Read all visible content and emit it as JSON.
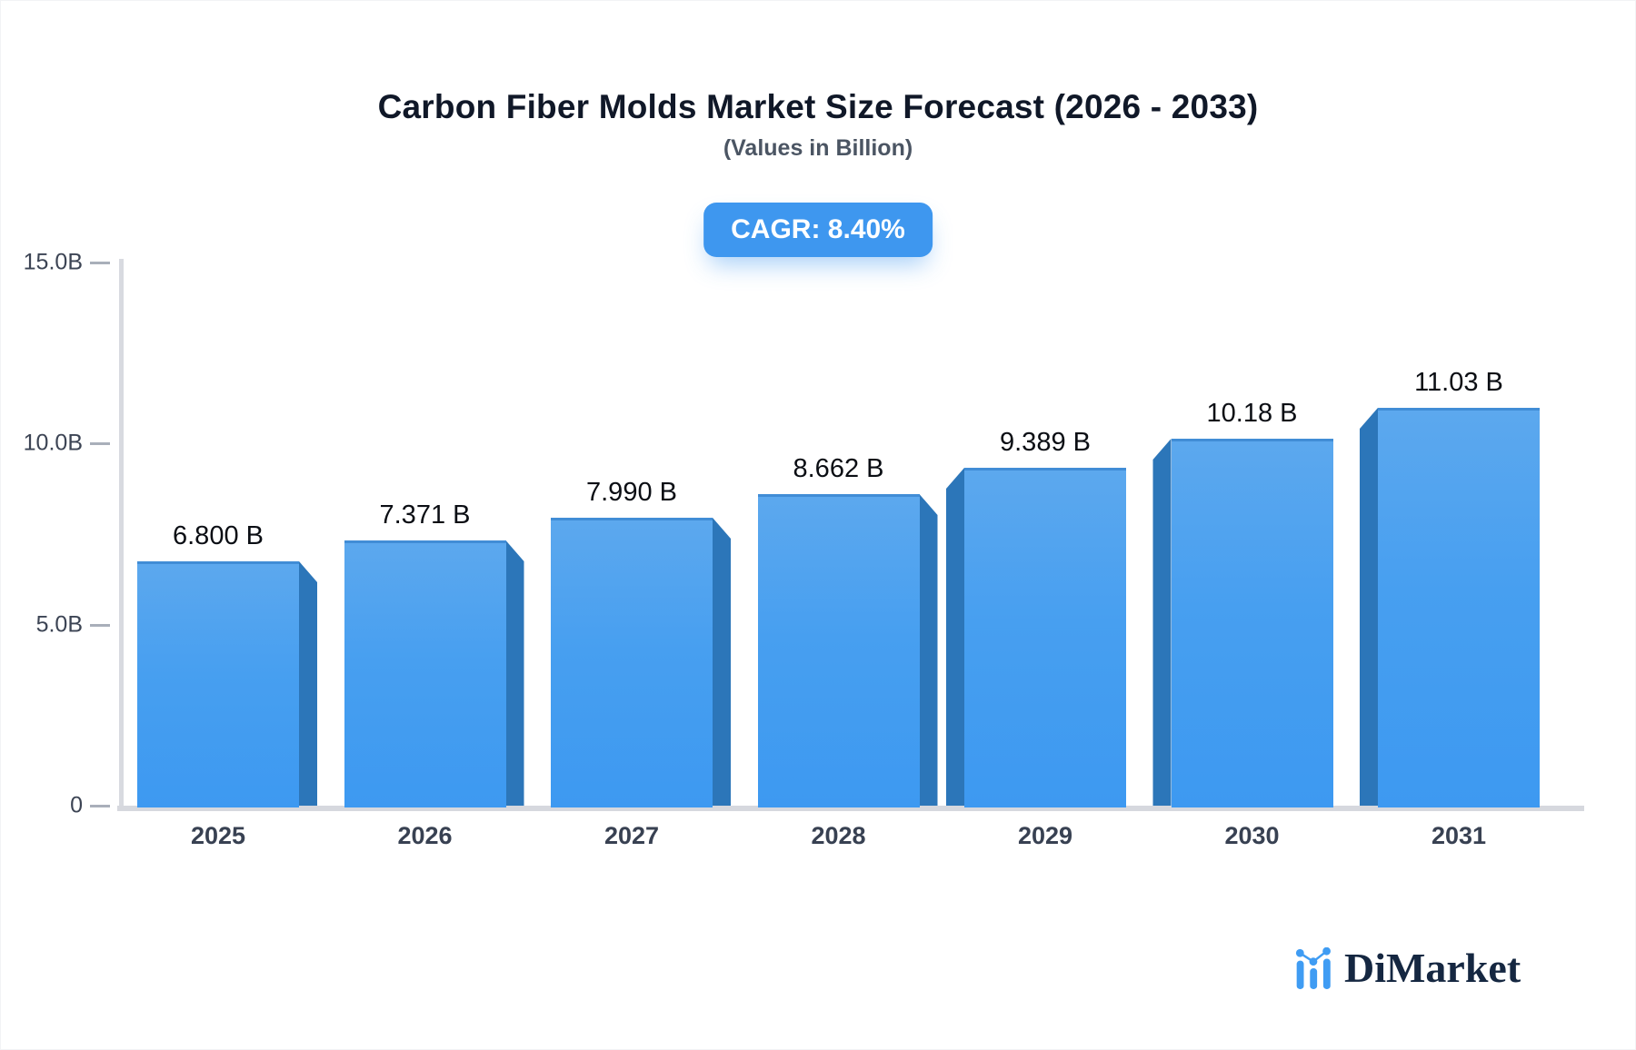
{
  "title": "Carbon Fiber Molds Market Size Forecast (2026 - 2033)",
  "subtitle": "(Values in Billion)",
  "badge": {
    "label": "CAGR: 8.40%"
  },
  "chart_data": {
    "type": "bar",
    "categories": [
      "2025",
      "2026",
      "2027",
      "2028",
      "2029",
      "2030",
      "2031"
    ],
    "values": [
      6.8,
      7.371,
      7.99,
      8.662,
      9.389,
      10.18,
      11.03
    ],
    "value_labels": [
      "6.800 B",
      "7.371 B",
      "7.990 B",
      "8.662 B",
      "9.389 B",
      "10.18 B",
      "11.03 B"
    ],
    "title": "Carbon Fiber Molds Market Size Forecast (2026 - 2033)",
    "subtitle": "(Values in Billion)",
    "ylim": [
      0,
      15
    ],
    "yticks": [
      {
        "label": "15.0B",
        "value": 15
      },
      {
        "label": "10.0B",
        "value": 10
      },
      {
        "label": "5.0B",
        "value": 5
      },
      {
        "label": "0",
        "value": 0
      }
    ],
    "grid": "off",
    "legend": "none",
    "colors": {
      "bar_top": "#5ca8ee",
      "bar_bottom": "#3d99f1",
      "bar_top_edge": "#418dd6",
      "bar_side": "#2c76b9",
      "axis": "#d8dae0",
      "tick": "#a9afba",
      "accent": "#3e97ef"
    }
  },
  "logo": {
    "text": "DiMarket"
  }
}
